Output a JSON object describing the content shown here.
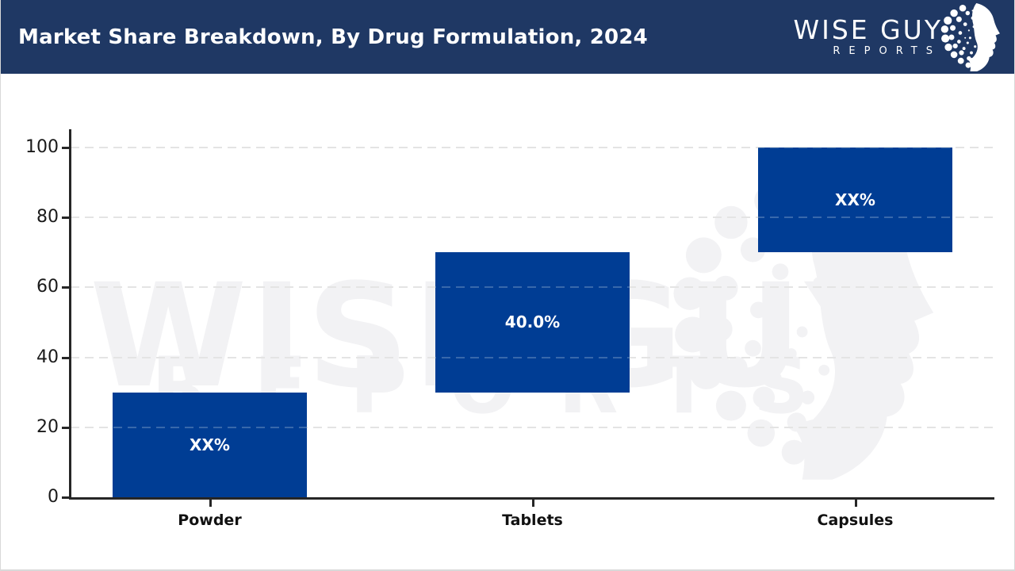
{
  "header": {
    "title": "Market Share Breakdown, By Drug Formulation, 2024",
    "logo": {
      "line1": "WISE GUY",
      "line2": "REPORTS"
    }
  },
  "watermark": {
    "line1": "WISE GUY",
    "line2": "REPORTS"
  },
  "colors": {
    "header_bg": "#1f3864",
    "bar": "#003d94",
    "bar_label": "#ffffff",
    "axis": "#262626",
    "gridline": "#dcdcdc",
    "watermark": "#f2f2f4"
  },
  "chart_data": {
    "type": "bar",
    "subtype": "floating-waterfall",
    "title": "Market Share Breakdown, By Drug Formulation, 2024",
    "categories": [
      "Powder",
      "Tablets",
      "Capsules"
    ],
    "series": [
      {
        "name": "Market Share",
        "segments": [
          {
            "category": "Powder",
            "start": 0,
            "end": 30,
            "label": "XX%"
          },
          {
            "category": "Tablets",
            "start": 30,
            "end": 70,
            "label": "40.0%"
          },
          {
            "category": "Capsules",
            "start": 70,
            "end": 100,
            "label": "XX%"
          }
        ]
      }
    ],
    "xlabel": "",
    "ylabel": "",
    "ylim": [
      0,
      100
    ],
    "yticks": [
      0,
      20,
      40,
      60,
      80,
      100
    ],
    "grid": "horizontal-dashed",
    "legend": "none"
  }
}
